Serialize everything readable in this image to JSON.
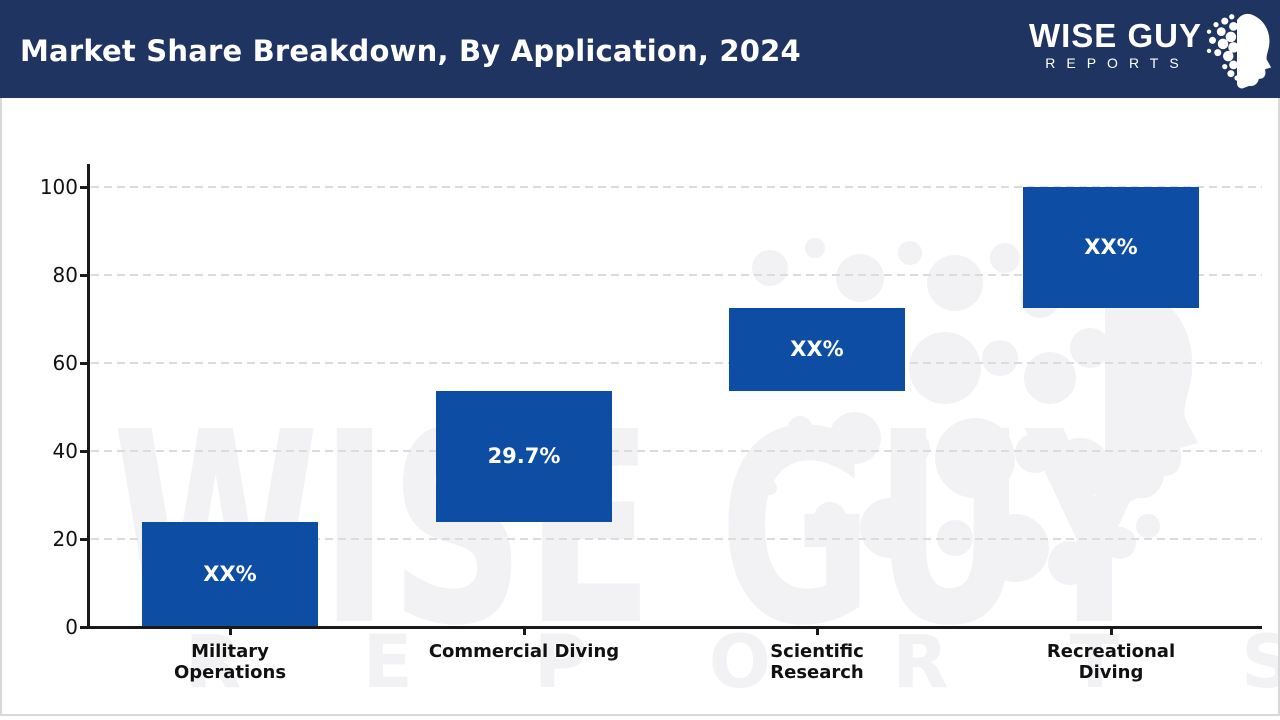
{
  "header": {
    "title": "Market Share Breakdown, By Application, 2024",
    "background_color": "#1f3461",
    "logo": {
      "wordmark": "WISE GUY",
      "subtitle": "REPORTS"
    }
  },
  "watermark": {
    "line1": "WISE GUY",
    "line2": "R E P O R T S"
  },
  "chart_data": {
    "type": "bar",
    "subtype": "waterfall",
    "title": "Market Share Breakdown, By Application, 2024",
    "categories": [
      "Military Operations",
      "Commercial Diving",
      "Scientific Research",
      "Recreational Diving"
    ],
    "category_display_lines": [
      [
        "Military",
        "Operations"
      ],
      [
        "Commercial Diving"
      ],
      [
        "Scientific",
        "Research"
      ],
      [
        "Recreational",
        "Diving"
      ]
    ],
    "segments": [
      {
        "category": "Military Operations",
        "start": 0,
        "end": 23.9,
        "label": "XX%"
      },
      {
        "category": "Commercial Diving",
        "start": 23.9,
        "end": 53.6,
        "label": "29.7%"
      },
      {
        "category": "Scientific Research",
        "start": 53.6,
        "end": 72.6,
        "label": "XX%"
      },
      {
        "category": "Recreational Diving",
        "start": 72.6,
        "end": 100,
        "label": "XX%"
      }
    ],
    "ylim": [
      0,
      100
    ],
    "yticks": [
      0,
      20,
      40,
      60,
      80,
      100
    ],
    "xlabel": "",
    "ylabel": "",
    "grid": "horizontal-dashed",
    "legend": "none",
    "bar_color": "#0d4da3",
    "bar_label_color": "#ffffff",
    "gridline_color": "#dcdcdc",
    "axis_color": "#1a1a1a"
  }
}
